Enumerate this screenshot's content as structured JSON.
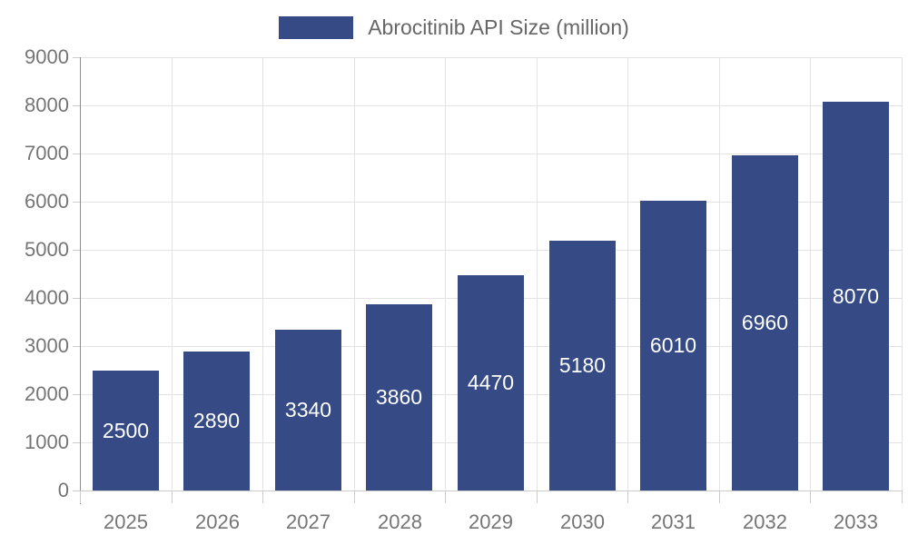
{
  "legend": {
    "label": "Abrocitinib API Size (million)"
  },
  "chart_data": {
    "type": "bar",
    "title": "Abrocitinib API Size (million)",
    "series_name": "Abrocitinib API Size (million)",
    "categories": [
      "2025",
      "2026",
      "2027",
      "2028",
      "2029",
      "2030",
      "2031",
      "2032",
      "2033"
    ],
    "values": [
      2500,
      2890,
      3340,
      3860,
      4470,
      5180,
      6010,
      6960,
      8070
    ],
    "xlabel": "",
    "ylabel": "",
    "ylim": [
      0,
      9000
    ],
    "ytick_interval": 1000,
    "ytick_labels": [
      "0",
      "1000",
      "2000",
      "3000",
      "4000",
      "5000",
      "6000",
      "7000",
      "8000",
      "9000"
    ],
    "grid": true,
    "legend_position": "top-center",
    "value_labels_position": "inside-center",
    "colors": {
      "bar": "#364B85",
      "bar_value_text": "#ffffff",
      "axis_text": "#757575",
      "legend_text": "#666666",
      "gridline": "#e3e3e3",
      "y_axis_line": "#8c8c8c",
      "tick": "#cccccc",
      "x_axis_line": "#cccccc",
      "background": "#ffffff"
    }
  }
}
